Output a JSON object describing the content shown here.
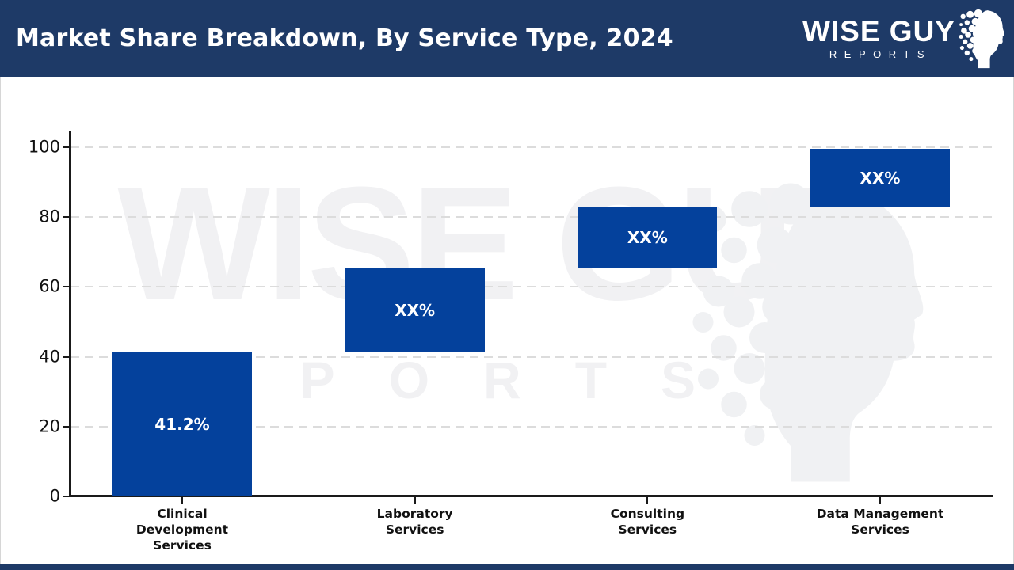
{
  "header": {
    "title": "Market Share Breakdown, By Service Type, 2024",
    "brand": {
      "wordmark": "WISE GUY",
      "subtitle": "REPORTS"
    },
    "bg_color": "#1e3a67"
  },
  "watermark": {
    "line1": "WISE GUY.",
    "line2": "REPORTS"
  },
  "chart_data": {
    "type": "bar",
    "subtype": "waterfall-floating-bars",
    "title": "Market Share Breakdown, By Service Type, 2024",
    "xlabel": "",
    "ylabel": "",
    "ylim": [
      0,
      103
    ],
    "yticks": [
      0,
      20,
      40,
      60,
      80,
      100
    ],
    "grid": "horizontal-dashed",
    "legend": "none",
    "bar_color": "#04419c",
    "bar_label_color": "#ffffff",
    "bars": [
      {
        "category": "Clinical Development Services",
        "category_lines": [
          "Clinical",
          "Development",
          "Services"
        ],
        "start": 0,
        "end": 41.2,
        "label": "41.2%"
      },
      {
        "category": "Laboratory Services",
        "category_lines": [
          "Laboratory",
          "Services"
        ],
        "start": 41.3,
        "end": 65.5,
        "label": "XX%"
      },
      {
        "category": "Consulting Services",
        "category_lines": [
          "Consulting",
          "Services"
        ],
        "start": 65.5,
        "end": 83.0,
        "label": "XX%"
      },
      {
        "category": "Data Management Services",
        "category_lines": [
          "Data Management",
          "Services"
        ],
        "start": 83.0,
        "end": 99.5,
        "label": "XX%"
      }
    ]
  }
}
